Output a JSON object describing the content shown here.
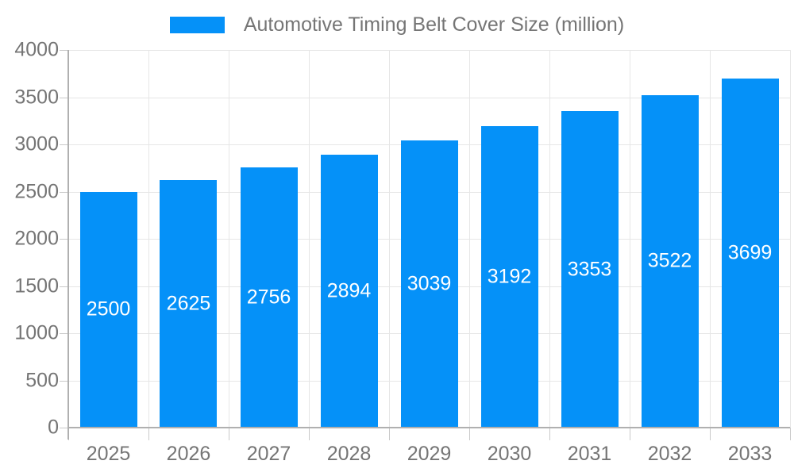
{
  "legend": {
    "label": "Automotive Timing Belt Cover Size (million)"
  },
  "chart_data": {
    "type": "bar",
    "title": "Automotive Timing Belt Cover Size (million)",
    "series_name": "Automotive Timing Belt Cover Size (million)",
    "categories": [
      "2025",
      "2026",
      "2027",
      "2028",
      "2029",
      "2030",
      "2031",
      "2032",
      "2033"
    ],
    "values": [
      2500,
      2625,
      2756,
      2894,
      3039,
      3192,
      3353,
      3522,
      3699
    ],
    "xlabel": "",
    "ylabel": "",
    "ylim": [
      0,
      4000
    ],
    "y_ticks": [
      0,
      500,
      1000,
      1500,
      2000,
      2500,
      3000,
      3500,
      4000
    ],
    "grid": true,
    "legend_position": "top",
    "value_labels": "inside-center",
    "colors": {
      "bar": "#0591f8",
      "bar_label": "#ffffff",
      "axis": "#b0b0b0",
      "gridline": "#e6e6e6",
      "tick": "#c9c9c9",
      "text": "#757575",
      "background": "#ffffff"
    }
  }
}
